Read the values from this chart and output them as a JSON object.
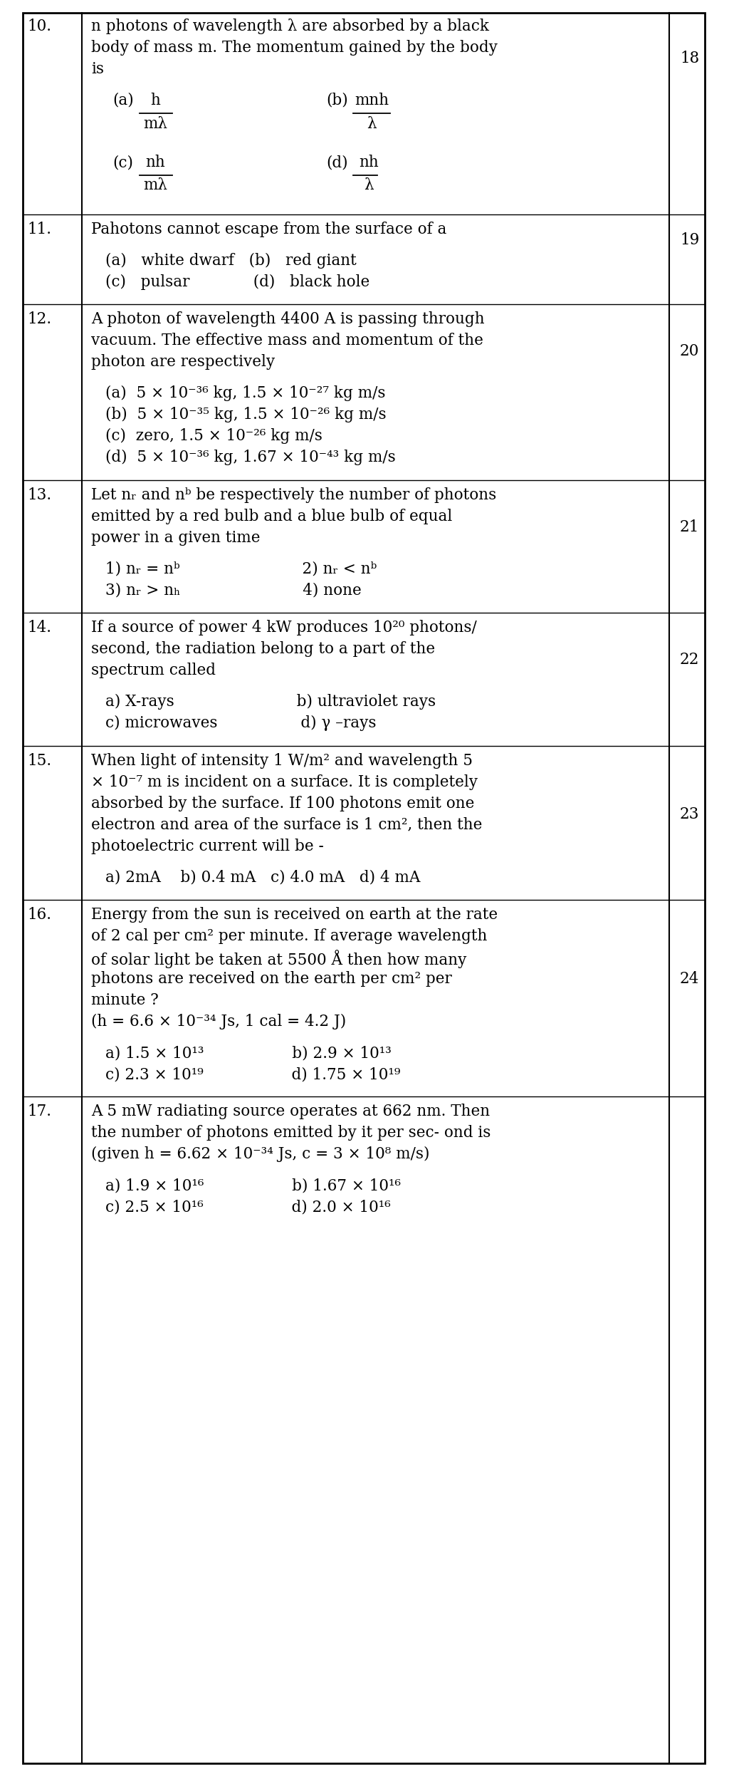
{
  "bg_color": "#ffffff",
  "border_color": "#000000",
  "text_color": "#000000",
  "questions": [
    {
      "num": "10.",
      "lines": [
        "n photons of wavelength λ are absorbed by a black",
        "body of mass m. The momentum gained by the body",
        "is"
      ],
      "options_special": true,
      "options_frac": [
        {
          "label": "(a)",
          "frac_num": "h",
          "frac_den": "mλ"
        },
        {
          "label": "(b)",
          "frac_num": "mnh",
          "frac_den": "λ"
        },
        {
          "label": "(c)",
          "frac_num": "nh",
          "frac_den": "mλ"
        },
        {
          "label": "(d)",
          "frac_num": "nh",
          "frac_den": "λ"
        }
      ],
      "side_num": "18"
    },
    {
      "num": "11.",
      "lines": [
        "Pahotons cannot escape from the surface of a"
      ],
      "options": [
        "(a)   white dwarf   (b)   red giant",
        "(c)   pulsar             (d)   black hole"
      ],
      "side_num": "19"
    },
    {
      "num": "12.",
      "lines": [
        "A photon of wavelength 4400 A is passing through",
        "vacuum. The effective mass and momentum of the",
        "photon are respectively"
      ],
      "options": [
        "(a)  5 × 10⁻³⁶ kg, 1.5 × 10⁻²⁷ kg m/s",
        "(b)  5 × 10⁻³⁵ kg, 1.5 × 10⁻²⁶ kg m/s",
        "(c)  zero, 1.5 × 10⁻²⁶ kg m/s",
        "(d)  5 × 10⁻³⁶ kg, 1.67 × 10⁻⁴³ kg m/s"
      ],
      "side_num": "20"
    },
    {
      "num": "13.",
      "lines": [
        "Let nᵣ and nᵇ be respectively the number of photons",
        "emitted by a red bulb and a blue bulb of equal",
        "power in a given time"
      ],
      "options": [
        "1) nᵣ = nᵇ                         2) nᵣ < nᵇ",
        "3) nᵣ > nₕ                         4) none"
      ],
      "side_num": "21"
    },
    {
      "num": "14.",
      "lines": [
        "If a source of power 4 kW produces 10²⁰ photons/",
        "second, the radiation belong to a part of the",
        "spectrum called"
      ],
      "options": [
        "a) X-rays                         b) ultraviolet rays",
        "c) microwaves                 d) γ –rays"
      ],
      "side_num": "22"
    },
    {
      "num": "15.",
      "lines": [
        "When light of intensity 1 W/m² and wavelength 5",
        "× 10⁻⁷ m is incident on a surface. It is completely",
        "absorbed by the surface. If 100 photons emit one",
        "electron and area of the surface is 1 cm², then the",
        "photoelectric current will be -"
      ],
      "options": [
        "a) 2mA    b) 0.4 mA   c) 4.0 mA   d) 4 mA"
      ],
      "side_num": "23"
    },
    {
      "num": "16.",
      "lines": [
        "Energy from the sun is received on earth at the rate",
        "of 2 cal per cm² per minute. If average wavelength",
        "of solar light be taken at 5500 Å then how many",
        "photons are received on the earth per cm² per",
        "minute ?",
        "(h = 6.6 × 10⁻³⁴ Js, 1 cal = 4.2 J)"
      ],
      "options": [
        "a) 1.5 × 10¹³                  b) 2.9 × 10¹³",
        "c) 2.3 × 10¹⁹                  d) 1.75 × 10¹⁹"
      ],
      "side_num": "24"
    },
    {
      "num": "17.",
      "lines": [
        "A 5 mW radiating source operates at 662 nm. Then",
        "the number of photons emitted by it per sec- ond is",
        "(given h = 6.62 × 10⁻³⁴ Js, c = 3 × 10⁸ m/s)"
      ],
      "options": [
        "a) 1.9 × 10¹⁶                  b) 1.67 × 10¹⁶",
        "c) 2.5 × 10¹⁶                  d) 2.0 × 10¹⁶"
      ],
      "side_num": ""
    }
  ]
}
